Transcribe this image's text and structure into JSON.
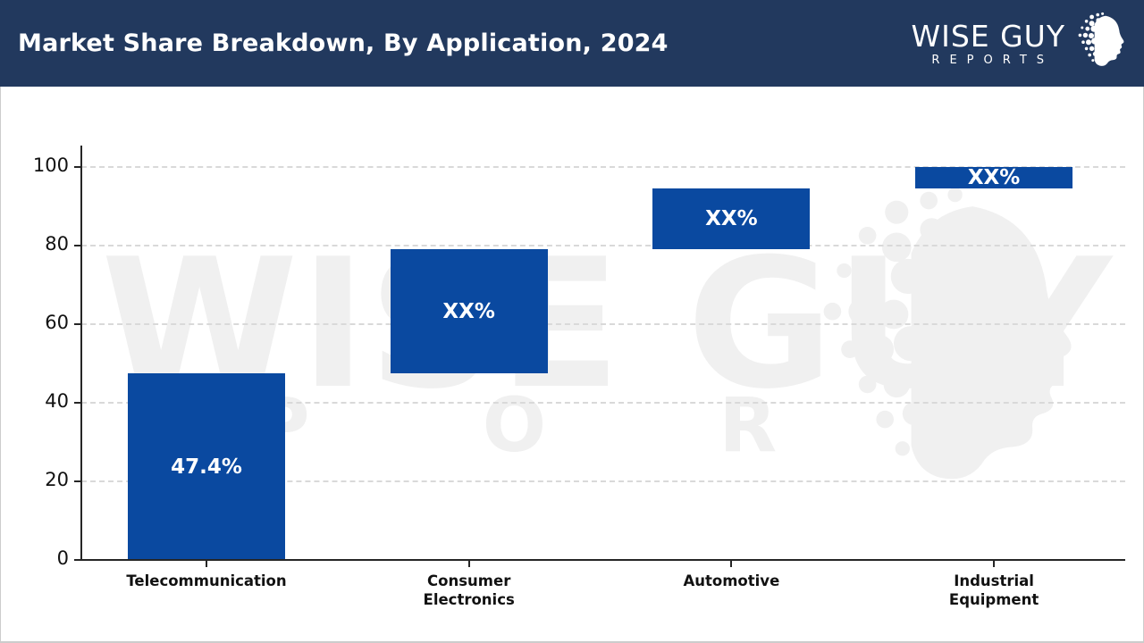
{
  "header": {
    "title": "Market Share Breakdown, By Application, 2024",
    "logo": {
      "line1": "WISE GUY",
      "line2": "REPORTS",
      "face_icon": "dotted-head-profile"
    }
  },
  "watermark": {
    "line1": "WISE GUY",
    "line2": "P O R T S",
    "face_icon": "dotted-head-profile"
  },
  "chart_data": {
    "type": "bar",
    "subtype": "waterfall",
    "title": "Market Share Breakdown, By Application, 2024",
    "categories": [
      "Telecommunication",
      "Consumer Electronics",
      "Automotive",
      "Industrial Equipment"
    ],
    "category_lines": [
      [
        "Telecommunication"
      ],
      [
        "Consumer",
        "Electronics"
      ],
      [
        "Automotive"
      ],
      [
        "Industrial",
        "Equipment"
      ]
    ],
    "segments": [
      {
        "category": "Telecommunication",
        "start": 0,
        "end": 47.4,
        "value": 47.4,
        "label": "47.4%"
      },
      {
        "category": "Consumer Electronics",
        "start": 47.4,
        "end": 79.0,
        "value": 31.6,
        "label": "XX%"
      },
      {
        "category": "Automotive",
        "start": 79.0,
        "end": 94.6,
        "value": 15.6,
        "label": "XX%"
      },
      {
        "category": "Industrial Equipment",
        "start": 94.6,
        "end": 100.0,
        "value": 5.4,
        "label": "XX%"
      }
    ],
    "xlabel": "",
    "ylabel": "",
    "ylim": [
      0,
      105
    ],
    "yticks": [
      0,
      20,
      40,
      60,
      80,
      100
    ],
    "grid": "horizontal-dashed",
    "legend": "none",
    "colors": {
      "bar": "#0A49A0",
      "bar_label": "#FFFFFF",
      "grid": "#D9D9D9",
      "axis": "#262626",
      "tick_label": "#111111",
      "header_bg": "#22395E",
      "header_text": "#FFFFFF",
      "watermark": "#F0F0F0"
    }
  }
}
